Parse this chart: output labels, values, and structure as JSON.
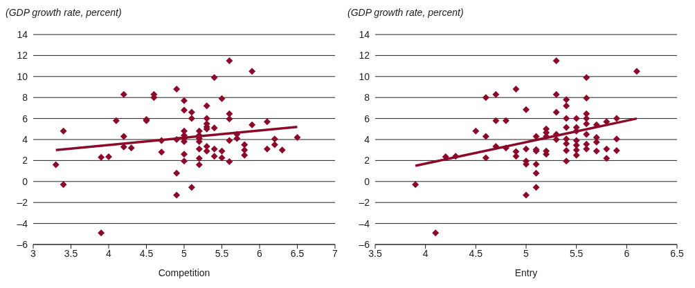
{
  "chart_data": [
    {
      "type": "scatter",
      "subtitle": "(GDP growth rate, percent)",
      "xlabel": "Competition",
      "xlim": [
        3,
        7
      ],
      "xticks": [
        3,
        3.5,
        4,
        4.5,
        5,
        5.5,
        6,
        6.5,
        7
      ],
      "ylim": [
        -6,
        14
      ],
      "yticks": [
        {
          "value": -6,
          "label": "–6"
        },
        {
          "value": -4,
          "label": "–4"
        },
        {
          "value": -2,
          "label": "–2"
        },
        0,
        2,
        4,
        6,
        8,
        10,
        12,
        14
      ],
      "grid": "y",
      "series": [
        {
          "marker": "diamond",
          "color": "#8b0a2a",
          "x": [
            3.3,
            3.4,
            3.4,
            3.9,
            4.0,
            3.9,
            4.1,
            4.2,
            4.2,
            4.2,
            4.3,
            4.5,
            4.5,
            4.6,
            4.6,
            4.7,
            4.7,
            4.9,
            4.9,
            4.9,
            4.9,
            5.0,
            5.0,
            5.0,
            5.0,
            5.0,
            5.0,
            5.0,
            5.0,
            5.1,
            5.1,
            5.1,
            5.2,
            5.2,
            5.2,
            5.2,
            5.2,
            5.2,
            5.2,
            5.3,
            5.3,
            5.3,
            5.3,
            5.3,
            5.3,
            5.3,
            5.4,
            5.4,
            5.4,
            5.4,
            5.5,
            5.5,
            5.5,
            5.6,
            5.6,
            5.6,
            5.6,
            5.6,
            5.7,
            5.7,
            5.8,
            5.8,
            5.8,
            5.9,
            5.9,
            6.1,
            6.1,
            6.2,
            6.2,
            6.3,
            6.5
          ],
          "values": [
            1.6,
            4.8,
            -0.3,
            2.3,
            2.35,
            -4.9,
            5.8,
            8.3,
            4.3,
            3.3,
            3.2,
            5.9,
            5.8,
            8.3,
            8.0,
            3.9,
            2.8,
            8.8,
            4.0,
            0.8,
            -1.3,
            7.7,
            6.8,
            4.8,
            4.4,
            4.1,
            3.8,
            2.6,
            1.95,
            6.6,
            6.0,
            -0.55,
            4.8,
            4.4,
            4.1,
            3.8,
            3.1,
            2.2,
            1.6,
            7.2,
            6.0,
            5.5,
            5.2,
            5.0,
            3.35,
            2.9,
            9.9,
            5.1,
            3.1,
            2.4,
            7.9,
            2.9,
            2.25,
            11.5,
            6.45,
            5.95,
            3.9,
            1.9,
            4.5,
            4.1,
            3.5,
            3.0,
            2.5,
            10.5,
            5.4,
            5.7,
            3.1,
            4.05,
            3.5,
            3.0,
            4.2
          ]
        },
        {
          "type": "line",
          "color": "#8b0a2a",
          "x": [
            3.3,
            6.5
          ],
          "values": [
            3.0,
            5.2
          ]
        }
      ]
    },
    {
      "type": "scatter",
      "subtitle": "(GDP growth rate, percent)",
      "xlabel": "Entry",
      "xlim": [
        3.5,
        6.5
      ],
      "xticks": [
        3.5,
        4,
        4.5,
        5,
        5.5,
        6,
        6.5
      ],
      "ylim": [
        -6,
        14
      ],
      "yticks": [
        {
          "value": -6,
          "label": "–6"
        },
        {
          "value": -4,
          "label": "–4"
        },
        {
          "value": -2,
          "label": "–2"
        },
        0,
        2,
        4,
        6,
        8,
        10,
        12,
        14
      ],
      "grid": "y",
      "series": [
        {
          "marker": "diamond",
          "color": "#8b0a2a",
          "x": [
            3.9,
            4.1,
            4.2,
            4.3,
            4.5,
            4.6,
            4.6,
            4.6,
            4.7,
            4.7,
            4.7,
            4.8,
            4.8,
            4.9,
            4.9,
            4.9,
            5.0,
            5.0,
            5.0,
            5.0,
            5.0,
            5.1,
            5.1,
            5.1,
            5.1,
            5.1,
            5.1,
            5.2,
            5.2,
            5.2,
            5.2,
            5.2,
            5.3,
            5.3,
            5.3,
            5.3,
            5.3,
            5.4,
            5.4,
            5.4,
            5.4,
            5.4,
            5.4,
            5.4,
            5.4,
            5.5,
            5.5,
            5.5,
            5.5,
            5.5,
            5.5,
            5.5,
            5.6,
            5.6,
            5.6,
            5.6,
            5.6,
            5.6,
            5.6,
            5.6,
            5.7,
            5.7,
            5.7,
            5.7,
            5.8,
            5.8,
            5.8,
            5.9,
            5.9,
            5.9,
            6.1
          ],
          "values": [
            -0.3,
            -4.9,
            2.35,
            2.4,
            4.8,
            8.0,
            4.3,
            2.25,
            8.3,
            5.8,
            3.35,
            5.8,
            3.2,
            8.8,
            2.85,
            2.4,
            6.85,
            3.1,
            1.95,
            1.65,
            -1.3,
            4.3,
            3.05,
            2.9,
            1.65,
            0.8,
            -0.55,
            5.0,
            4.65,
            4.3,
            2.9,
            2.6,
            11.5,
            8.3,
            6.6,
            4.5,
            4.0,
            7.8,
            7.2,
            6.0,
            5.15,
            4.05,
            3.6,
            2.95,
            1.95,
            6.0,
            5.15,
            4.8,
            3.9,
            3.45,
            3.0,
            2.5,
            9.9,
            7.95,
            6.45,
            6.0,
            5.5,
            4.5,
            3.55,
            3.1,
            5.4,
            4.2,
            3.75,
            2.9,
            5.7,
            3.1,
            2.2,
            6.0,
            4.05,
            2.95,
            10.5
          ]
        },
        {
          "type": "line",
          "color": "#8b0a2a",
          "x": [
            3.9,
            6.1
          ],
          "values": [
            1.5,
            6.0
          ]
        }
      ]
    }
  ]
}
